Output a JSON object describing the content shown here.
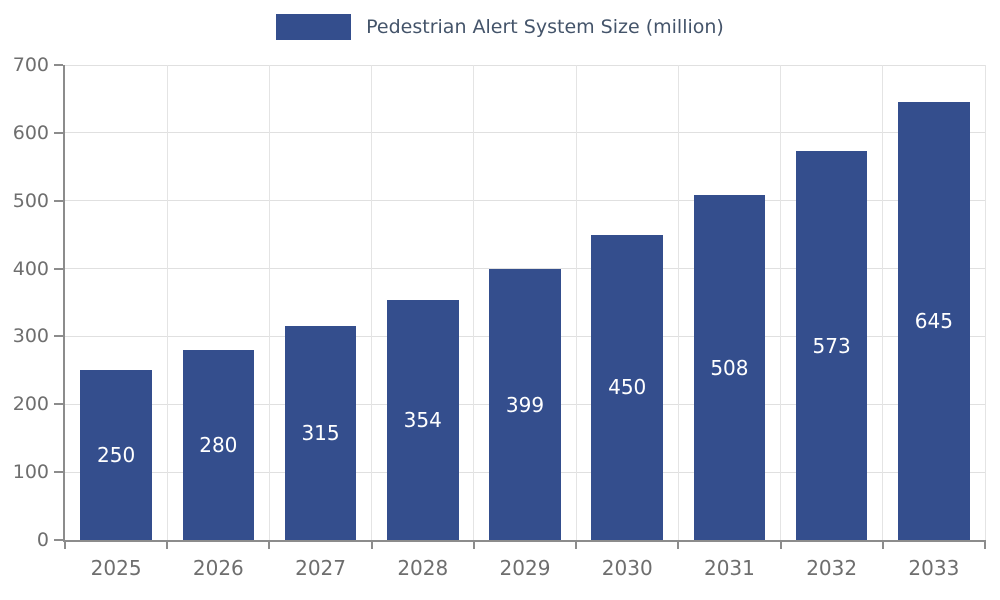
{
  "legend": {
    "label": "Pedestrian Alert System Size (million)",
    "swatch_color": "#344e8d"
  },
  "chart_data": {
    "type": "bar",
    "title": "Pedestrian Alert System Size (million)",
    "categories": [
      "2025",
      "2026",
      "2027",
      "2028",
      "2029",
      "2030",
      "2031",
      "2032",
      "2033"
    ],
    "values": [
      250,
      280,
      315,
      354,
      399,
      450,
      508,
      573,
      645
    ],
    "xlabel": "",
    "ylabel": "",
    "ylim": [
      0,
      700
    ],
    "yticks": [
      0,
      100,
      200,
      300,
      400,
      500,
      600,
      700
    ],
    "grid": true,
    "legend_position": "top",
    "bar_color": "#344e8d",
    "value_label_color": "#ffffff",
    "value_labels_inside": true
  }
}
